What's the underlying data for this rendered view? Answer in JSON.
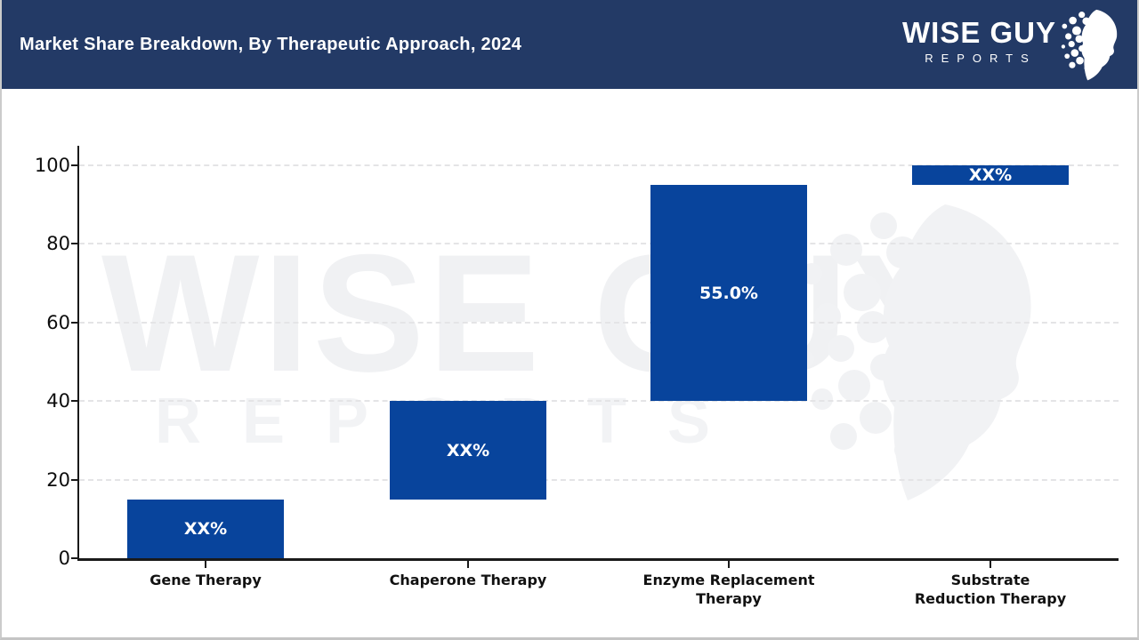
{
  "header": {
    "title": "Market Share Breakdown, By Therapeutic Approach, 2024",
    "logo": {
      "line1": "WISE GUY",
      "line2": "REPORTS"
    }
  },
  "watermark": {
    "line1": "WISE GUY",
    "line2": "REPORTS"
  },
  "chart_data": {
    "type": "bar",
    "variant": "waterfall",
    "title": "Market Share Breakdown, By Therapeutic Approach, 2024",
    "categories": [
      "Gene Therapy",
      "Chaperone Therapy",
      "Enzyme Replacement Therapy",
      "Substrate Reduction Therapy"
    ],
    "category_label_lines": [
      [
        "Gene Therapy"
      ],
      [
        "Chaperone Therapy"
      ],
      [
        "Enzyme Replacement",
        "Therapy"
      ],
      [
        "Substrate",
        "Reduction Therapy"
      ]
    ],
    "segments": [
      {
        "category": "Gene Therapy",
        "start": 0,
        "end": 15,
        "value": 15,
        "label": "XX%"
      },
      {
        "category": "Chaperone Therapy",
        "start": 15,
        "end": 40,
        "value": 25,
        "label": "XX%"
      },
      {
        "category": "Enzyme Replacement Therapy",
        "start": 40,
        "end": 95,
        "value": 55,
        "label": "55.0%"
      },
      {
        "category": "Substrate Reduction Therapy",
        "start": 95,
        "end": 100,
        "value": 5,
        "label": "XX%"
      }
    ],
    "bar_labels": [
      "XX%",
      "XX%",
      "55.0%",
      "XX%"
    ],
    "yticks": [
      0,
      20,
      40,
      60,
      80,
      100
    ],
    "ylim": [
      0,
      105
    ],
    "xlabel": "",
    "ylabel": "",
    "grid": "dashed-horizontal",
    "legend": "none",
    "colors": {
      "bar": "#08449c",
      "bar_label": "#ffffff",
      "header_bg": "#233a66",
      "axis": "#1a1a1a",
      "gridline": "#e4e4e6",
      "watermark": "#f0f1f3"
    }
  }
}
